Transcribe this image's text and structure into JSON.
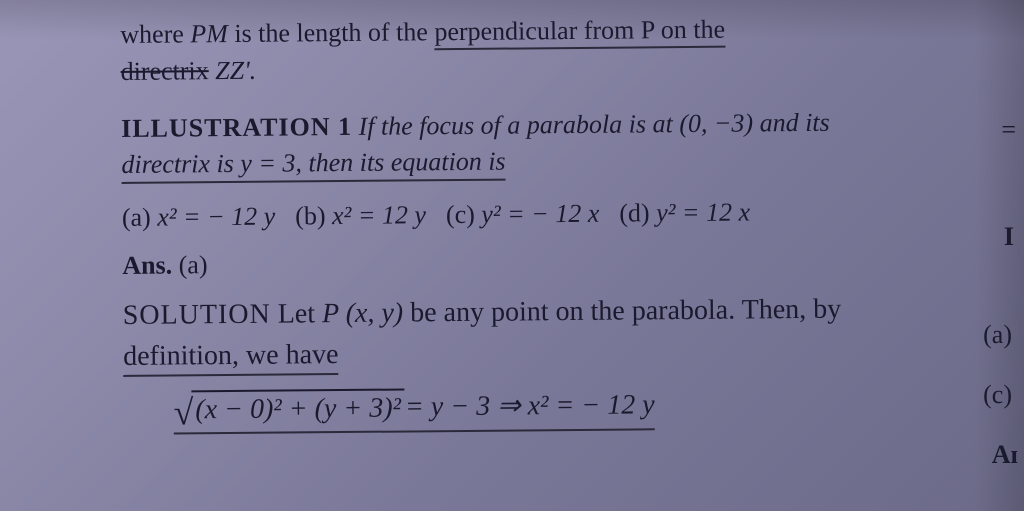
{
  "intro": {
    "line1_pre": "where ",
    "pm": "PM",
    "line1_mid": " is the length of the ",
    "line1_und": "perpendicular from P on the",
    "line2_strike": "directrix",
    "line2_rest": " ZZ'."
  },
  "illustration": {
    "label": "ILLUSTRATION 1",
    "text1_a": " If the focus of a parabola is at ",
    "focus": "(0, −3)",
    "text1_b": " and its",
    "text2_a": "directrix is ",
    "directrix_eq": "y = 3",
    "text2_b": ", then its equation is"
  },
  "options": {
    "a": {
      "label": "(a)",
      "eq": "x² = − 12 y"
    },
    "b": {
      "label": "(b)",
      "eq": "x² = 12 y"
    },
    "c": {
      "label": "(c)",
      "eq": "y² = − 12 x"
    },
    "d": {
      "label": "(d)",
      "eq": "y² = 12 x"
    }
  },
  "answer": {
    "label": "Ans.",
    "value": "(a)"
  },
  "solution": {
    "label": "SOLUTION",
    "text1_a": "  Let ",
    "point": "P (x, y)",
    "text1_b": " be any point on the parabola. Then, by",
    "text2": "definition, we have"
  },
  "formula": {
    "under_root": "(x − 0)²  + (y + 3)²",
    "rhs": " = y − 3  ⇒  x² = − 12 y"
  },
  "margins": {
    "eq": "=",
    "i": "I",
    "a": "(a)",
    "c": "(c)",
    "ar": "Aɪ"
  }
}
